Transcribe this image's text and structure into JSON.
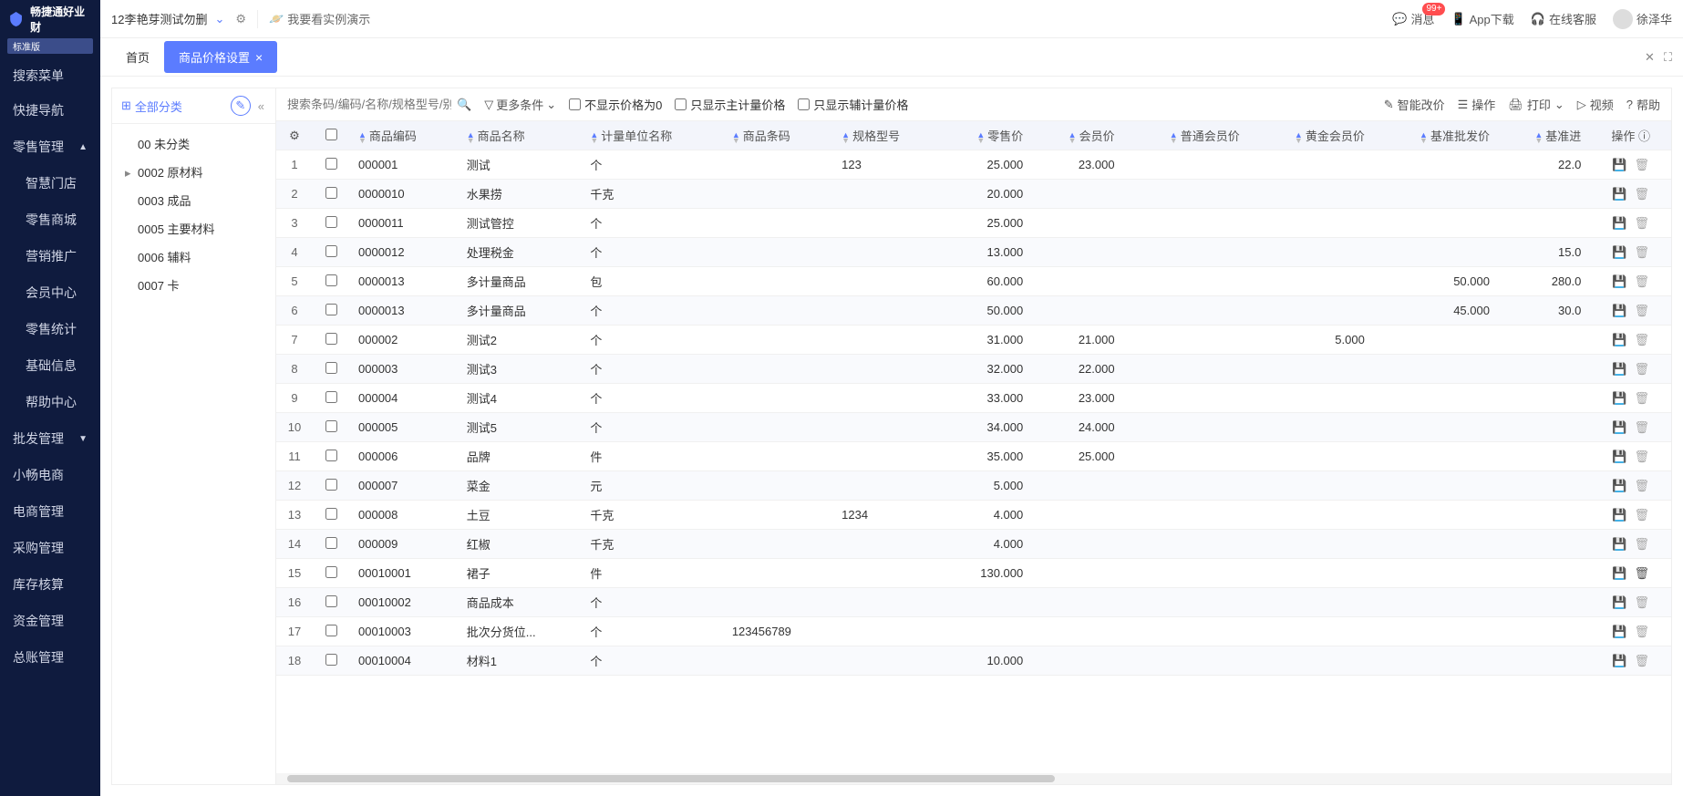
{
  "brand": {
    "name": "畅捷通好业财",
    "edition": "标准版"
  },
  "topbar": {
    "org": "12李艳芽测试勿删",
    "demo": "我要看实例演示",
    "msg": "消息",
    "msg_badge": "99+",
    "app": "App下载",
    "service": "在线客服",
    "user": "徐泽华"
  },
  "sidenav": {
    "search": "搜索菜单",
    "quick": "快捷导航",
    "retail": "零售管理",
    "retail_subs": [
      "智慧门店",
      "零售商城",
      "营销推广",
      "会员中心",
      "零售统计",
      "基础信息",
      "帮助中心"
    ],
    "wholesale": "批发管理",
    "others": [
      "小畅电商",
      "电商管理",
      "采购管理",
      "库存核算",
      "资金管理",
      "总账管理"
    ]
  },
  "tabs": {
    "home": "首页",
    "active": "商品价格设置"
  },
  "categories": {
    "title": "全部分类",
    "items": [
      {
        "label": "00 未分类",
        "children": false
      },
      {
        "label": "0002 原材料",
        "children": true
      },
      {
        "label": "0003 成品",
        "children": false
      },
      {
        "label": "0005 主要材料",
        "children": false
      },
      {
        "label": "0006 辅料",
        "children": false
      },
      {
        "label": "0007 卡",
        "children": false
      }
    ]
  },
  "toolbar": {
    "search_ph": "搜索条码/编码/名称/规格型号/别名",
    "more": "更多条件",
    "cb1": "不显示价格为0",
    "cb2": "只显示主计量价格",
    "cb3": "只显示辅计量价格",
    "smart": "智能改价",
    "op": "操作",
    "print": "打印",
    "video": "视频",
    "help": "帮助"
  },
  "columns": [
    "商品编码",
    "商品名称",
    "计量单位名称",
    "商品条码",
    "规格型号",
    "零售价",
    "会员价",
    "普通会员价",
    "黄金会员价",
    "基准批发价",
    "基准进",
    "操作"
  ],
  "numeric_cols": [
    5,
    6,
    7,
    8,
    9,
    10
  ],
  "rows": [
    {
      "idx": 1,
      "code": "000001",
      "name": "测试",
      "unit": "个",
      "barcode": "",
      "spec": "123",
      "retail": "25.000",
      "member": "23.000",
      "normal": "",
      "gold": "",
      "wholesale": "",
      "base": "22.0"
    },
    {
      "idx": 2,
      "code": "0000010",
      "name": "水果捞",
      "unit": "千克",
      "barcode": "",
      "spec": "",
      "retail": "20.000",
      "member": "",
      "normal": "",
      "gold": "",
      "wholesale": "",
      "base": ""
    },
    {
      "idx": 3,
      "code": "0000011",
      "name": "测试管控",
      "unit": "个",
      "barcode": "",
      "spec": "",
      "retail": "25.000",
      "member": "",
      "normal": "",
      "gold": "",
      "wholesale": "",
      "base": ""
    },
    {
      "idx": 4,
      "code": "0000012",
      "name": "处理税金",
      "unit": "个",
      "barcode": "",
      "spec": "",
      "retail": "13.000",
      "member": "",
      "normal": "",
      "gold": "",
      "wholesale": "",
      "base": "15.0"
    },
    {
      "idx": 5,
      "code": "0000013",
      "name": "多计量商品",
      "unit": "包",
      "barcode": "",
      "spec": "",
      "retail": "60.000",
      "member": "",
      "normal": "",
      "gold": "",
      "wholesale": "50.000",
      "base": "280.0"
    },
    {
      "idx": 6,
      "code": "0000013",
      "name": "多计量商品",
      "unit": "个",
      "barcode": "",
      "spec": "",
      "retail": "50.000",
      "member": "",
      "normal": "",
      "gold": "",
      "wholesale": "45.000",
      "base": "30.0"
    },
    {
      "idx": 7,
      "code": "000002",
      "name": "测试2",
      "unit": "个",
      "barcode": "",
      "spec": "",
      "retail": "31.000",
      "member": "21.000",
      "normal": "",
      "gold": "5.000",
      "wholesale": "",
      "base": ""
    },
    {
      "idx": 8,
      "code": "000003",
      "name": "测试3",
      "unit": "个",
      "barcode": "",
      "spec": "",
      "retail": "32.000",
      "member": "22.000",
      "normal": "",
      "gold": "",
      "wholesale": "",
      "base": ""
    },
    {
      "idx": 9,
      "code": "000004",
      "name": "测试4",
      "unit": "个",
      "barcode": "",
      "spec": "",
      "retail": "33.000",
      "member": "23.000",
      "normal": "",
      "gold": "",
      "wholesale": "",
      "base": ""
    },
    {
      "idx": 10,
      "code": "000005",
      "name": "测试5",
      "unit": "个",
      "barcode": "",
      "spec": "",
      "retail": "34.000",
      "member": "24.000",
      "normal": "",
      "gold": "",
      "wholesale": "",
      "base": ""
    },
    {
      "idx": 11,
      "code": "000006",
      "name": "品牌",
      "unit": "件",
      "barcode": "",
      "spec": "",
      "retail": "35.000",
      "member": "25.000",
      "normal": "",
      "gold": "",
      "wholesale": "",
      "base": ""
    },
    {
      "idx": 12,
      "code": "000007",
      "name": "菜金",
      "unit": "元",
      "barcode": "",
      "spec": "",
      "retail": "5.000",
      "member": "",
      "normal": "",
      "gold": "",
      "wholesale": "",
      "base": ""
    },
    {
      "idx": 13,
      "code": "000008",
      "name": "土豆",
      "unit": "千克",
      "barcode": "",
      "spec": "1234",
      "retail": "4.000",
      "member": "",
      "normal": "",
      "gold": "",
      "wholesale": "",
      "base": ""
    },
    {
      "idx": 14,
      "code": "000009",
      "name": "红椒",
      "unit": "千克",
      "barcode": "",
      "spec": "",
      "retail": "4.000",
      "member": "",
      "normal": "",
      "gold": "",
      "wholesale": "",
      "base": ""
    },
    {
      "idx": 15,
      "code": "00010001",
      "name": "裙子",
      "unit": "件",
      "barcode": "",
      "spec": "",
      "retail": "130.000",
      "member": "",
      "normal": "",
      "gold": "",
      "wholesale": "",
      "base": "",
      "active_op": true
    },
    {
      "idx": 16,
      "code": "00010002",
      "name": "商品成本",
      "unit": "个",
      "barcode": "",
      "spec": "",
      "retail": "",
      "member": "",
      "normal": "",
      "gold": "",
      "wholesale": "",
      "base": ""
    },
    {
      "idx": 17,
      "code": "00010003",
      "name": "批次分货位...",
      "unit": "个",
      "barcode": "123456789",
      "spec": "",
      "retail": "",
      "member": "",
      "normal": "",
      "gold": "",
      "wholesale": "",
      "base": ""
    },
    {
      "idx": 18,
      "code": "00010004",
      "name": "材料1",
      "unit": "个",
      "barcode": "",
      "spec": "",
      "retail": "10.000",
      "member": "",
      "normal": "",
      "gold": "",
      "wholesale": "",
      "base": ""
    }
  ],
  "colors": {
    "primary": "#5b7cff",
    "sidebar_bg": "#0f1b3e",
    "header_bg": "#f3f5fb",
    "row_alt": "#f9fafd",
    "badge": "#ff4d4f"
  }
}
